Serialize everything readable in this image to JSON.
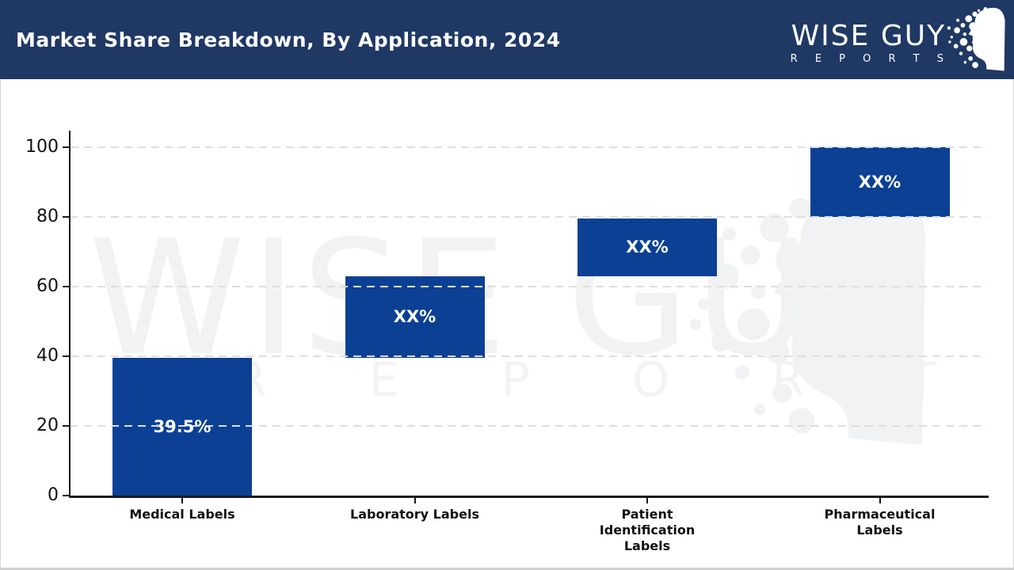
{
  "header": {
    "title": "Market Share Breakdown, By Application, 2024",
    "bg_color": "#1f3864",
    "logo": {
      "line1": "WISE GUY",
      "line2": "R E P O R T S"
    }
  },
  "watermark": {
    "line1": "WISE GUY",
    "line2": "R E P O R T S"
  },
  "chart_data": {
    "type": "bar",
    "subtype": "waterfall",
    "title": "Market Share Breakdown, By Application, 2024",
    "categories": [
      "Medical Labels",
      "Laboratory Labels",
      "Patient Identification Labels",
      "Pharmaceutical Labels"
    ],
    "category_label_lines": [
      [
        "Medical Labels"
      ],
      [
        "Laboratory Labels"
      ],
      [
        "Patient",
        "Identification",
        "Labels"
      ],
      [
        "Pharmaceutical",
        "Labels"
      ]
    ],
    "segments": [
      {
        "category": "Medical Labels",
        "start": 0,
        "end": 39.5,
        "label": "39.5%"
      },
      {
        "category": "Laboratory Labels",
        "start": 39.5,
        "end": 63,
        "label": "XX%"
      },
      {
        "category": "Patient Identification Labels",
        "start": 63,
        "end": 79.5,
        "label": "XX%"
      },
      {
        "category": "Pharmaceutical Labels",
        "start": 80,
        "end": 100,
        "label": "XX%"
      }
    ],
    "value_labels": [
      "39.5%",
      "XX%",
      "XX%",
      "XX%"
    ],
    "xlabel": "",
    "ylabel": "",
    "yticks": [
      0,
      20,
      40,
      60,
      80,
      100
    ],
    "ylim": [
      0,
      105
    ],
    "grid": "horizontal dashed",
    "legend": "none",
    "bar_color": "#0b4094",
    "axis_color": "#1a1a1a",
    "gridline_color": "#dedede"
  }
}
